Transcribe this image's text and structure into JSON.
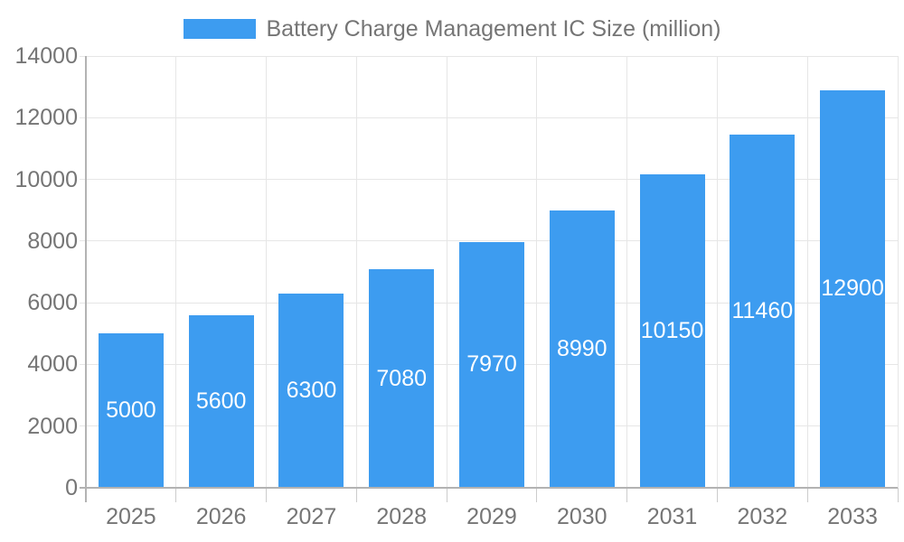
{
  "chart_data": {
    "type": "bar",
    "title": "Battery Charge Management IC Size (million)",
    "legend_position": "top",
    "categories": [
      "2025",
      "2026",
      "2027",
      "2028",
      "2029",
      "2030",
      "2031",
      "2032",
      "2033"
    ],
    "values": [
      5000,
      5600,
      6300,
      7080,
      7970,
      8990,
      10150,
      11460,
      12900
    ],
    "xlabel": "",
    "ylabel": "",
    "ylim": [
      0,
      14000
    ],
    "yticks": [
      0,
      2000,
      4000,
      6000,
      8000,
      10000,
      12000,
      14000
    ],
    "grid": true,
    "colors": {
      "bar": "#3D9CF0",
      "axis_text": "#757575",
      "bar_label_text": "#FFFFFF",
      "grid_line": "#E6E6E6",
      "tick_line": "#CCCCCC",
      "axis_line": "#B3B3B3"
    }
  }
}
